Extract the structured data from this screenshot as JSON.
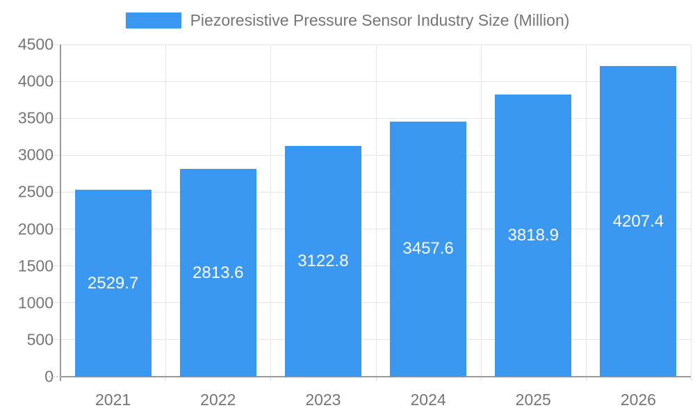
{
  "chart_data": {
    "type": "bar",
    "title": "Piezoresistive Pressure Sensor Industry Size (Million)",
    "legend_position": "top",
    "categories": [
      "2021",
      "2022",
      "2023",
      "2024",
      "2025",
      "2026"
    ],
    "series": [
      {
        "name": "Piezoresistive Pressure Sensor Industry Size (Million)",
        "values": [
          2529.7,
          2813.6,
          3122.8,
          3457.6,
          3818.9,
          4207.4
        ]
      }
    ],
    "value_labels": [
      "2529.7",
      "2813.6",
      "3122.8",
      "3457.6",
      "3818.9",
      "4207.4"
    ],
    "xlabel": "",
    "ylabel": "",
    "ylim": [
      0,
      4500
    ],
    "y_ticks": [
      0,
      500,
      1000,
      1500,
      2000,
      2500,
      3000,
      3500,
      4000,
      4500
    ],
    "grid": true,
    "colors": {
      "bar": "#3B98F0",
      "value_label_text": "#ffffff",
      "axis_text": "#757575",
      "legend_text": "#757575",
      "gridline": "#e6e6e6",
      "axis_line": "#999999",
      "background": "#ffffff"
    }
  }
}
